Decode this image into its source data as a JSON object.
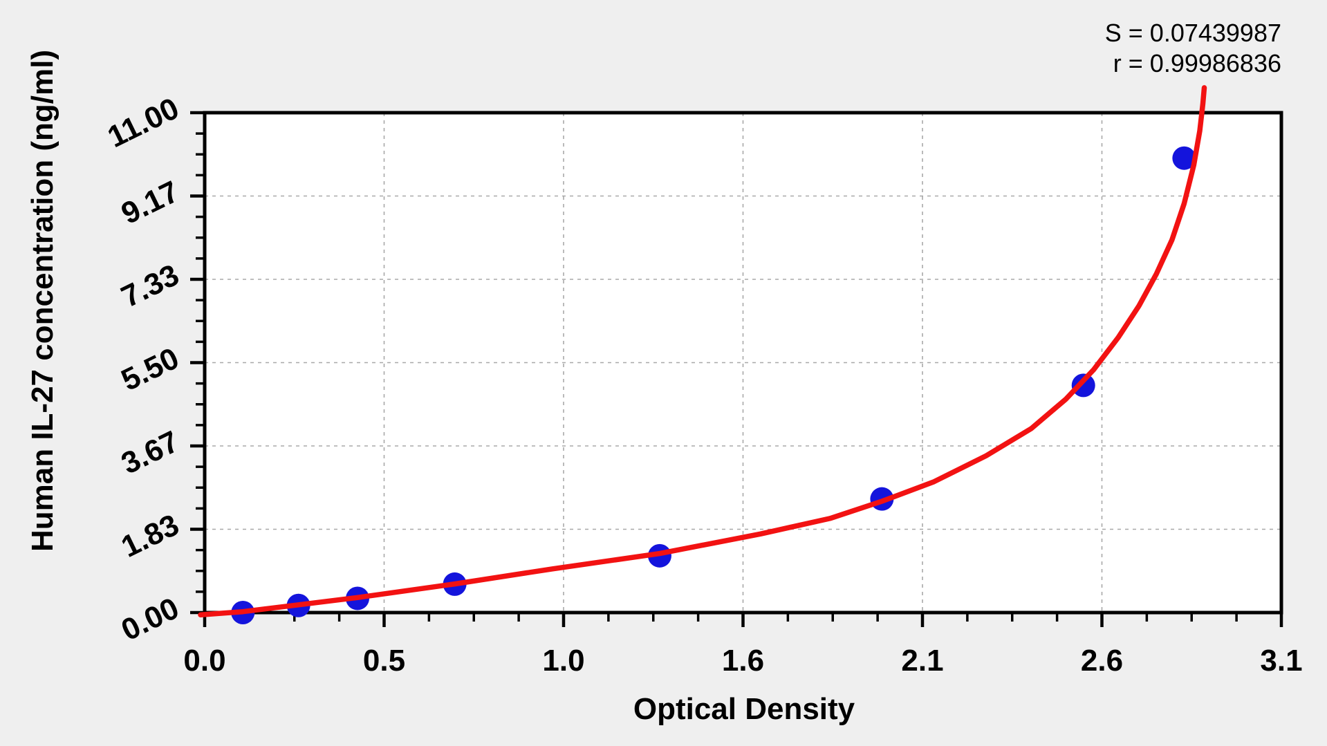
{
  "page": {
    "background_color": "#efefef"
  },
  "chart_data": {
    "type": "scatter",
    "annotations": {
      "s_text": "S = 0.07439987",
      "r_text": "r = 0.99986836"
    },
    "x_axis": {
      "title": "Optical Density",
      "range": [
        0,
        3.1
      ],
      "major_tick_labels": [
        "0.0",
        "0.5",
        "1.0",
        "1.6",
        "2.1",
        "2.6",
        "3.1"
      ],
      "minor_divisions_per_major": 4,
      "gridlines": "dashed"
    },
    "y_axis": {
      "title": "Human IL-27 concentration (ng/ml)",
      "range": [
        0,
        11
      ],
      "major_tick_labels": [
        "0.00",
        "1.83",
        "3.67",
        "5.50",
        "7.33",
        "9.17",
        "11.00"
      ],
      "minor_divisions_per_major": 4,
      "gridlines": "dashed"
    },
    "series": [
      {
        "name": "standard-points",
        "type": "scatter",
        "color": "#1414dc",
        "marker_radius": 17,
        "points": [
          [
            0.11,
            0.0
          ],
          [
            0.27,
            0.156
          ],
          [
            0.44,
            0.3125
          ],
          [
            0.72,
            0.625
          ],
          [
            1.31,
            1.25
          ],
          [
            1.95,
            2.5
          ],
          [
            2.53,
            5.0
          ],
          [
            2.82,
            10.0
          ]
        ]
      },
      {
        "name": "fitted-curve",
        "type": "line",
        "color": "#f21212",
        "stroke_width": 7.5,
        "points": [
          [
            -0.012,
            -0.05
          ],
          [
            0.11,
            0.02
          ],
          [
            0.27,
            0.17
          ],
          [
            0.44,
            0.33
          ],
          [
            0.72,
            0.63
          ],
          [
            1.0,
            0.96
          ],
          [
            1.31,
            1.3
          ],
          [
            1.6,
            1.73
          ],
          [
            1.8,
            2.07
          ],
          [
            1.95,
            2.45
          ],
          [
            2.1,
            2.88
          ],
          [
            2.25,
            3.45
          ],
          [
            2.38,
            4.05
          ],
          [
            2.48,
            4.7
          ],
          [
            2.56,
            5.35
          ],
          [
            2.63,
            6.05
          ],
          [
            2.69,
            6.75
          ],
          [
            2.74,
            7.45
          ],
          [
            2.785,
            8.2
          ],
          [
            2.82,
            9.0
          ],
          [
            2.848,
            9.85
          ],
          [
            2.865,
            10.6
          ],
          [
            2.874,
            11.2
          ],
          [
            2.878,
            11.55
          ]
        ]
      }
    ],
    "colors": {
      "grid": "#a8a8a8",
      "frame": "#000000",
      "plot_background": "#ffffff",
      "text": "#000000"
    }
  }
}
